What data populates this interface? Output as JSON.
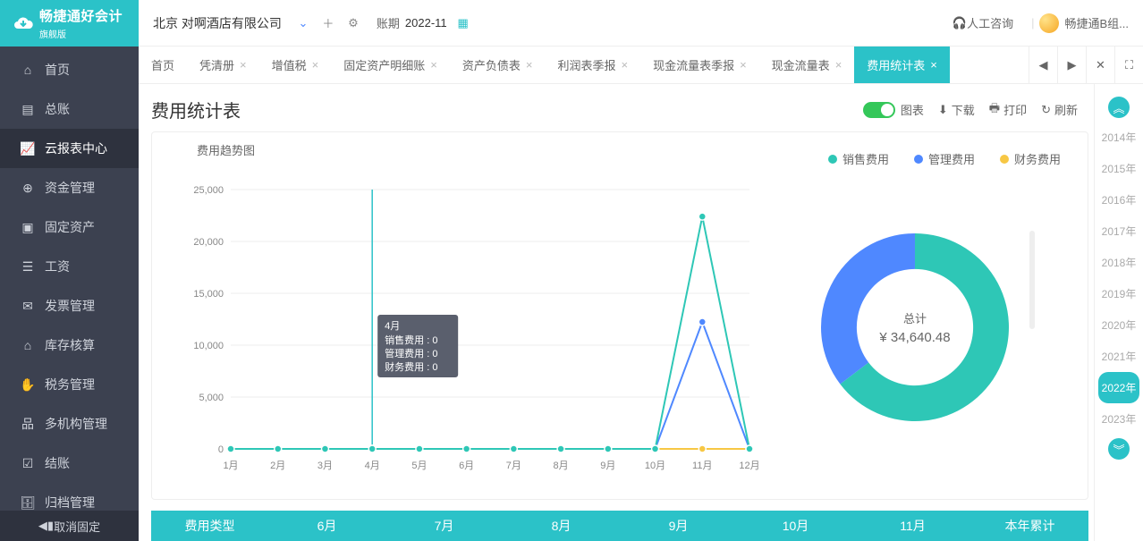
{
  "brand": {
    "name": "畅捷通好会计",
    "edition": "旗舰版"
  },
  "topbar": {
    "company": "北京 对啊酒店有限公司",
    "period_label": "账期",
    "period_value": "2022-11",
    "consult": "人工咨询",
    "user": "畅捷通B组..."
  },
  "nav": [
    {
      "icon": "home",
      "label": "首页"
    },
    {
      "icon": "ledger",
      "label": "总账"
    },
    {
      "icon": "report",
      "label": "云报表中心",
      "active": true
    },
    {
      "icon": "fund",
      "label": "资金管理"
    },
    {
      "icon": "asset",
      "label": "固定资产"
    },
    {
      "icon": "salary",
      "label": "工资"
    },
    {
      "icon": "invoice",
      "label": "发票管理"
    },
    {
      "icon": "stock",
      "label": "库存核算"
    },
    {
      "icon": "tax",
      "label": "税务管理"
    },
    {
      "icon": "org",
      "label": "多机构管理"
    },
    {
      "icon": "close",
      "label": "结账"
    },
    {
      "icon": "archive",
      "label": "归档管理"
    }
  ],
  "unpin": "取消固定",
  "tabs": [
    {
      "label": "首页",
      "closable": false
    },
    {
      "label": "凭清册",
      "closable": true
    },
    {
      "label": "增值税",
      "closable": true
    },
    {
      "label": "固定资产明细账",
      "closable": true
    },
    {
      "label": "资产负债表",
      "closable": true
    },
    {
      "label": "利润表季报",
      "closable": true
    },
    {
      "label": "现金流量表季报",
      "closable": true
    },
    {
      "label": "现金流量表",
      "closable": true
    },
    {
      "label": "费用统计表",
      "closable": true,
      "active": true
    }
  ],
  "page": {
    "title": "费用统计表",
    "toolbar": {
      "chart_toggle": "图表",
      "download": "下载",
      "print": "打印",
      "refresh": "刷新"
    }
  },
  "chart": {
    "title": "费用趋势图",
    "legend": [
      {
        "label": "销售费用",
        "color": "#2ec7b6"
      },
      {
        "label": "管理费用",
        "color": "#4f88ff"
      },
      {
        "label": "财务费用",
        "color": "#f7c744"
      }
    ],
    "x_labels": [
      "1月",
      "2月",
      "3月",
      "4月",
      "5月",
      "6月",
      "7月",
      "8月",
      "9月",
      "10月",
      "11月",
      "12月"
    ],
    "y_ticks": [
      0,
      5000,
      10000,
      15000,
      20000,
      25000
    ],
    "ylim": [
      0,
      25000
    ],
    "series": {
      "sales": [
        0,
        0,
        0,
        0,
        0,
        0,
        0,
        0,
        0,
        0,
        22400,
        0
      ],
      "mgmt": [
        0,
        0,
        0,
        0,
        0,
        0,
        0,
        0,
        0,
        0,
        12240,
        0
      ],
      "fin": [
        0,
        0,
        0,
        0,
        0,
        0,
        0,
        0,
        0,
        0,
        0,
        0
      ]
    },
    "tooltip": {
      "month": "4月",
      "lines": [
        "销售费用 : 0",
        "管理费用 : 0",
        "财务费用 : 0"
      ],
      "at_index": 3
    },
    "colors": {
      "axis": "#cccccc",
      "grid": "#eeeeee",
      "tooltip_bg": "#5a5f6d",
      "vline": "#2bc2c8"
    }
  },
  "donut": {
    "center_label": "总计",
    "center_value": "¥ 34,640.48",
    "slices": [
      {
        "label": "销售费用",
        "value": 22400,
        "color": "#2ec7b6"
      },
      {
        "label": "管理费用",
        "value": 12240,
        "color": "#4f88ff"
      },
      {
        "label": "财务费用",
        "value": 0.48,
        "color": "#f7c744"
      }
    ],
    "cutout": 0.62
  },
  "rightrail": {
    "years": [
      "2014年",
      "2015年",
      "2016年",
      "2017年",
      "2018年",
      "2019年",
      "2020年",
      "2021年",
      "2022年",
      "2023年"
    ],
    "active": "2022年"
  },
  "bottom": {
    "cells": [
      "费用类型",
      "6月",
      "7月",
      "8月",
      "9月",
      "10月",
      "11月",
      "本年累计"
    ]
  }
}
